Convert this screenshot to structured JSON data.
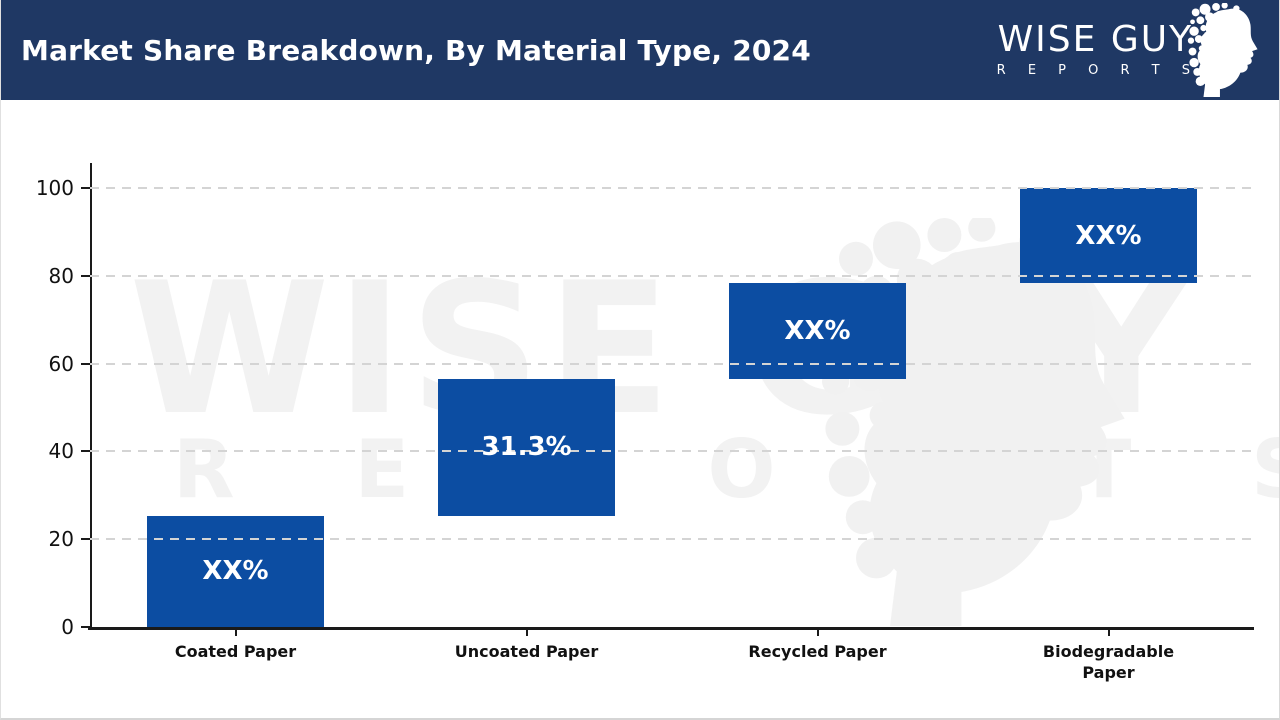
{
  "header": {
    "title": "Market Share Breakdown, By Material Type, 2024",
    "background_color": "#1f3864",
    "logo": {
      "line1": "WISE GUY",
      "line2": "R E P O R T S",
      "head_icon": "dotted-face-profile"
    }
  },
  "watermark": {
    "line1": "WISE GUY",
    "line2": "R E P O R T S",
    "head_graphic": "dotted-face-profile",
    "color": "#f2f2f2"
  },
  "chart_data": {
    "type": "bar",
    "subtype": "waterfall-breakdown",
    "title": "Market Share Breakdown, By Material Type, 2024",
    "categories": [
      "Coated Paper",
      "Uncoated Paper",
      "Recycled Paper",
      "Biodegradable Paper"
    ],
    "segments": [
      {
        "category": "Coated Paper",
        "start": 0,
        "end": 25.3,
        "value_label": "XX%"
      },
      {
        "category": "Uncoated Paper",
        "start": 25.3,
        "end": 56.6,
        "value_label": "31.3%"
      },
      {
        "category": "Recycled Paper",
        "start": 56.6,
        "end": 78.3,
        "value_label": "XX%"
      },
      {
        "category": "Biodegradable Paper",
        "start": 78.3,
        "end": 100,
        "value_label": "XX%"
      }
    ],
    "xlabel": "",
    "ylabel": "",
    "yticks": [
      0,
      20,
      40,
      60,
      80,
      100
    ],
    "ylim": [
      0,
      105.7
    ],
    "grid": "horizontal-dashed-drawn-above-bars",
    "legend": false,
    "bar_width_fraction": 0.605,
    "bar_color": "#0c4da2",
    "bar_label_color": "#ffffff"
  }
}
